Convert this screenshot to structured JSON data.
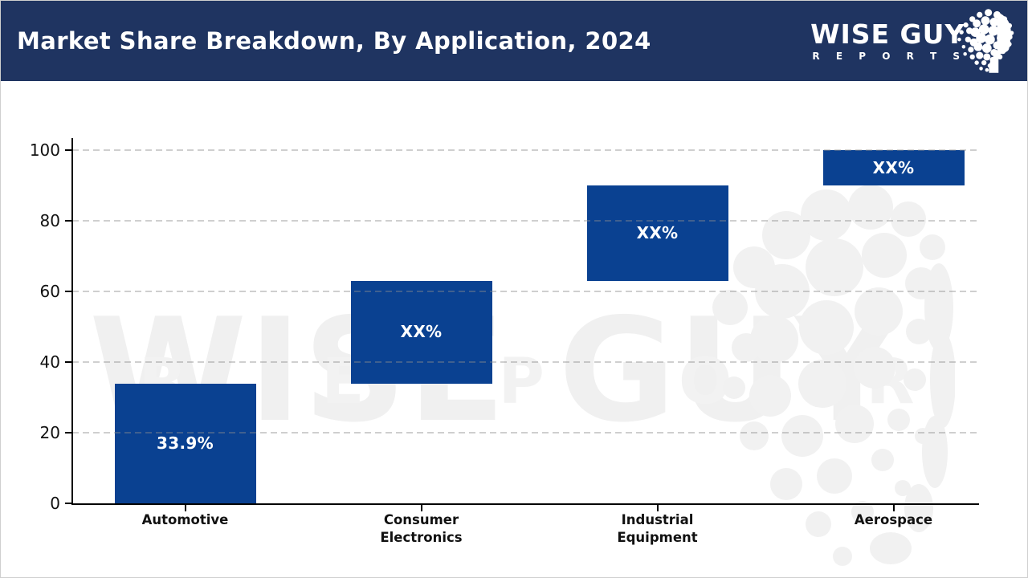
{
  "header": {
    "title": "Market Share Breakdown, By Application, 2024",
    "bg_color": "#1f3461",
    "logo": {
      "name": "WISE GUY",
      "sub": "R E P O R T S",
      "icon": "dotted-head-profile"
    }
  },
  "watermark": {
    "line1": "WISE GUY",
    "line2": "R E P O R T S",
    "icon": "dotted-head-profile",
    "color": "#f0f0f0"
  },
  "chart_data": {
    "type": "bar",
    "variant": "floating-segment-waterfall",
    "title": "Market Share Breakdown, By Application, 2024",
    "xlabel": "",
    "ylabel": "",
    "ylim": [
      0,
      103.5
    ],
    "y_ticks": [
      0,
      20,
      40,
      60,
      80,
      100
    ],
    "grid": "dashed-horizontal",
    "legend": "none",
    "bar_color": "#0a4191",
    "bar_label_color": "#ffffff",
    "categories": [
      {
        "name": "Automotive",
        "lines": [
          "Automotive"
        ]
      },
      {
        "name": "Consumer Electronics",
        "lines": [
          "Consumer",
          "Electronics"
        ]
      },
      {
        "name": "Industrial Equipment",
        "lines": [
          "Industrial",
          "Equipment"
        ]
      },
      {
        "name": "Aerospace",
        "lines": [
          "Aerospace"
        ]
      }
    ],
    "segments": [
      {
        "category": "Automotive",
        "start": 0,
        "end": 33.9,
        "label": "33.9%"
      },
      {
        "category": "Consumer Electronics",
        "start": 33.9,
        "end": 63,
        "label": "XX%"
      },
      {
        "category": "Industrial Equipment",
        "start": 63,
        "end": 90,
        "label": "XX%"
      },
      {
        "category": "Aerospace",
        "start": 90,
        "end": 100,
        "label": "XX%"
      }
    ]
  }
}
